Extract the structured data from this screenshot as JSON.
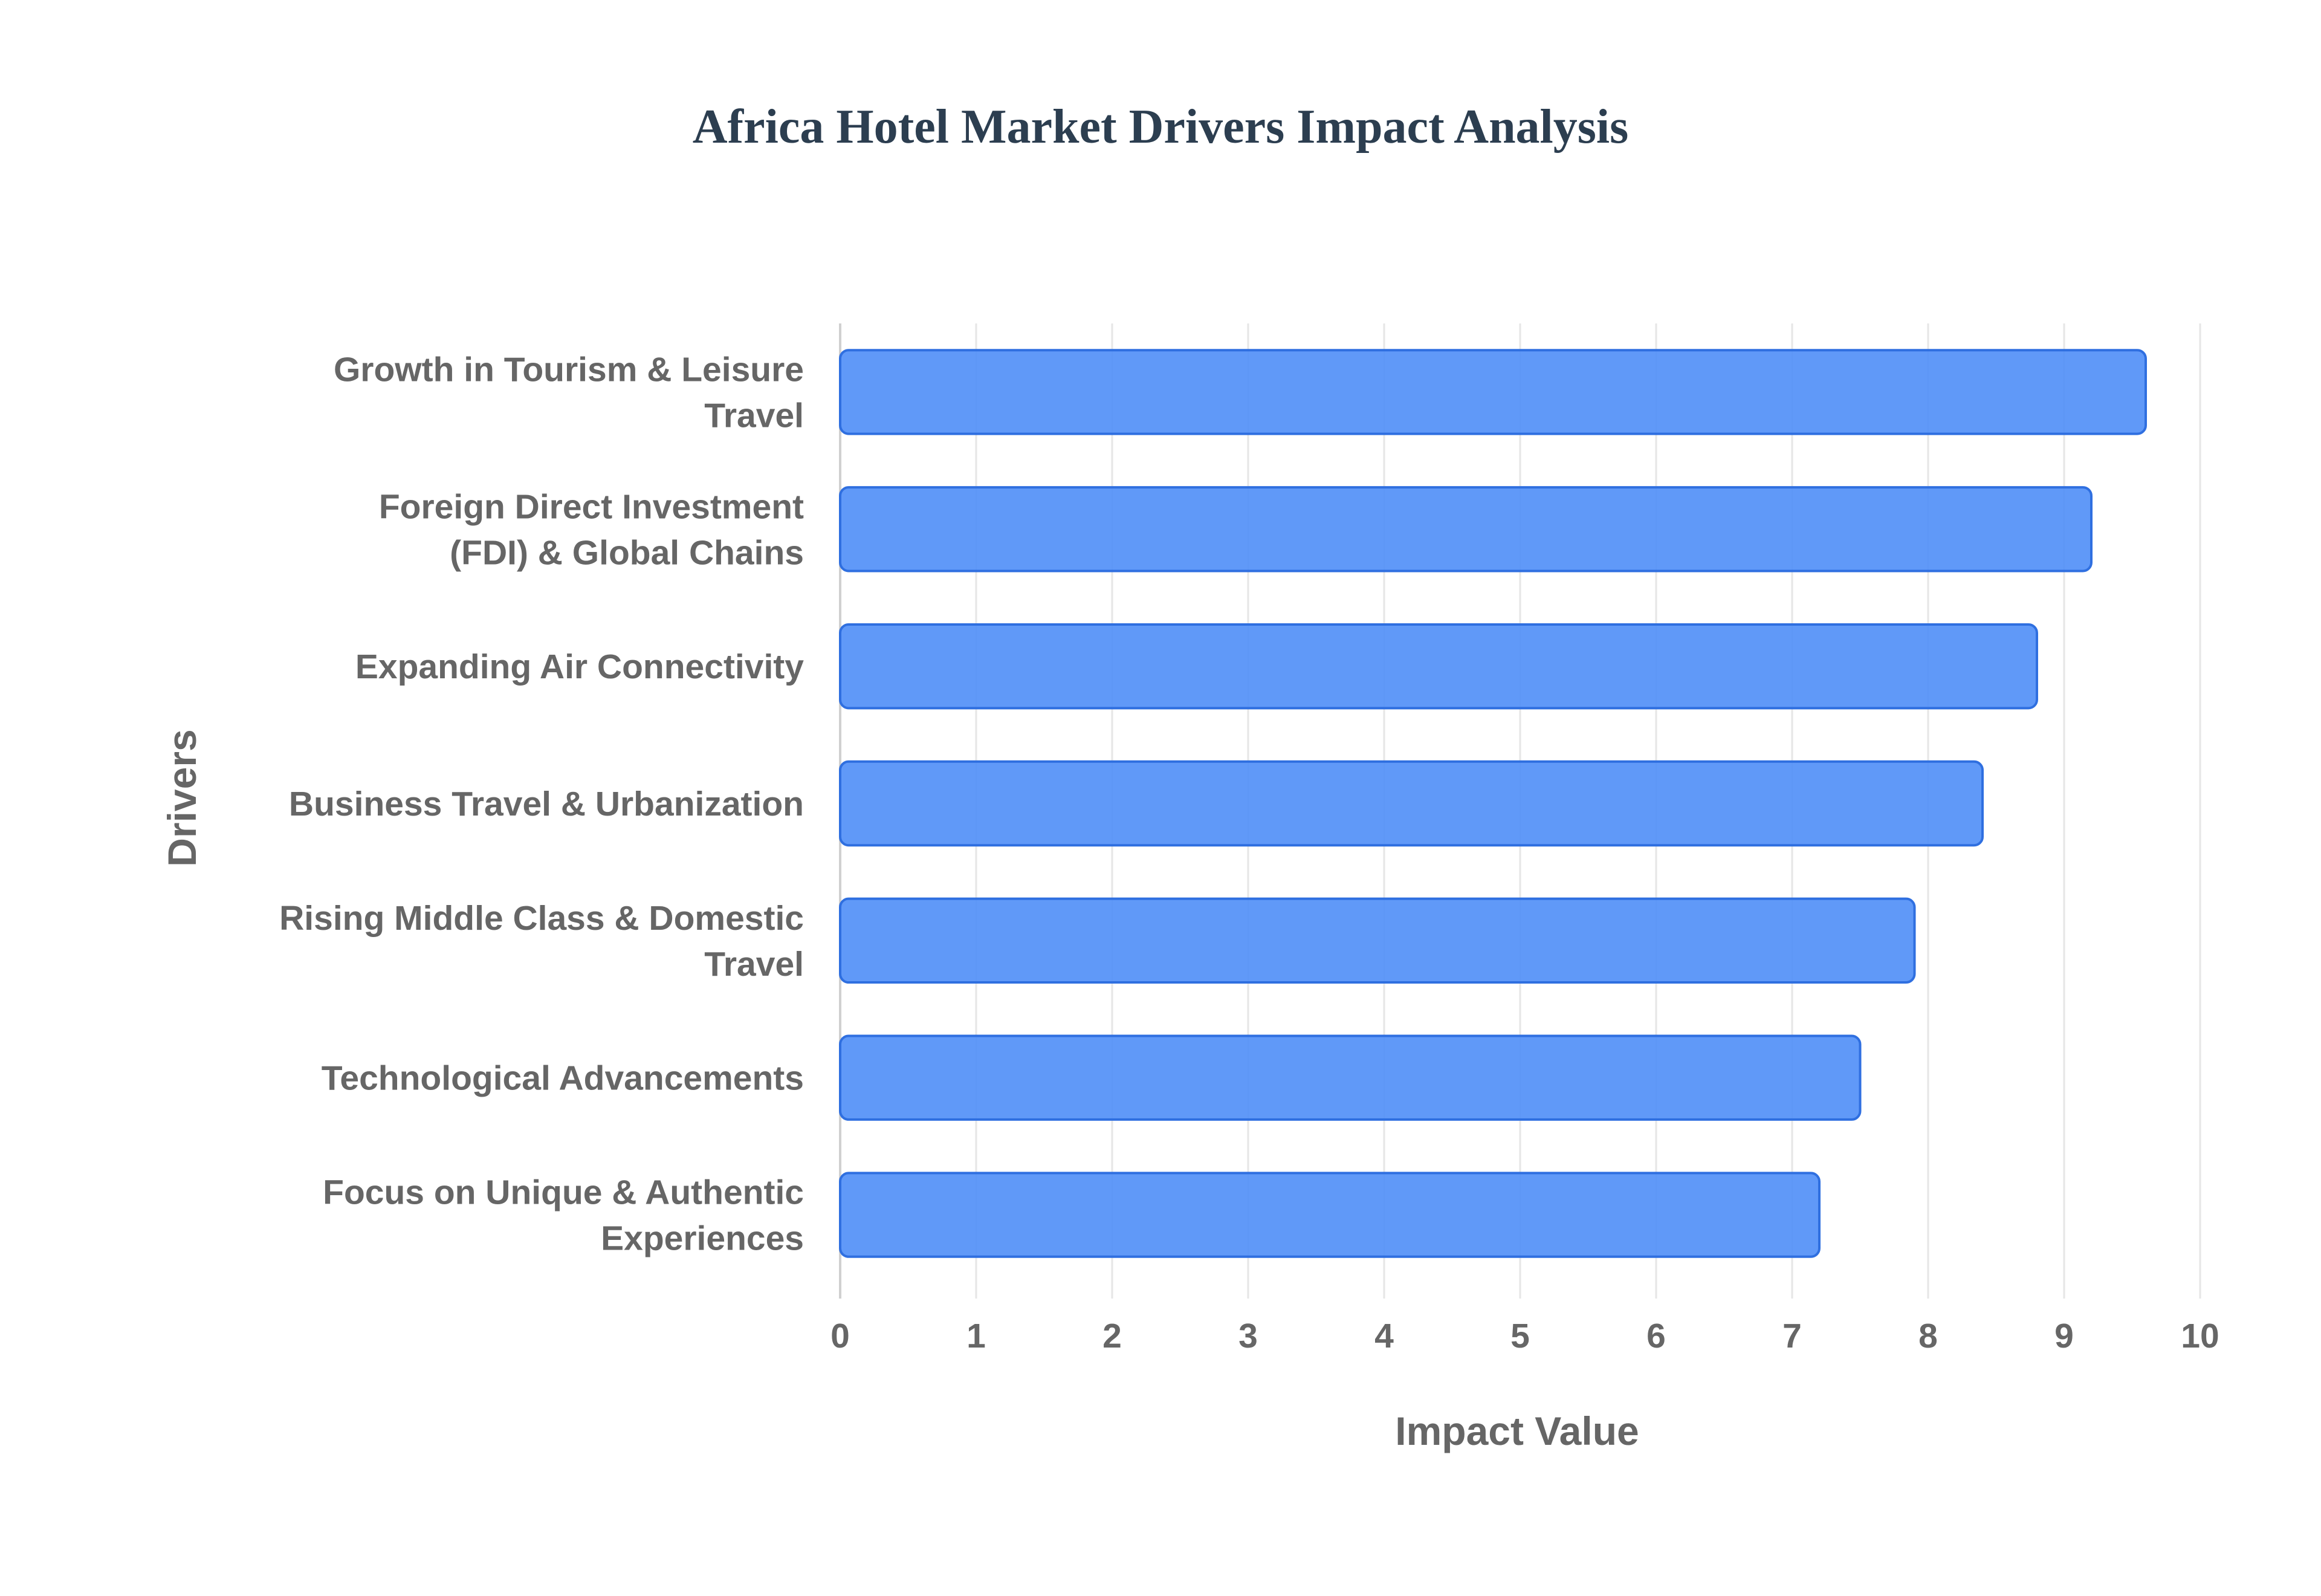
{
  "chart_data": {
    "type": "bar",
    "orientation": "horizontal",
    "title": "Africa Hotel Market Drivers Impact Analysis",
    "xlabel": "Impact Value",
    "ylabel": "Drivers",
    "categories": [
      [
        "Growth in Tourism & Leisure",
        "Travel"
      ],
      [
        "Foreign Direct Investment",
        "(FDI) & Global Chains"
      ],
      [
        "Expanding Air Connectivity"
      ],
      [
        "Business Travel & Urbanization"
      ],
      [
        "Rising Middle Class & Domestic",
        "Travel"
      ],
      [
        "Technological Advancements"
      ],
      [
        "Focus on Unique & Authentic",
        "Experiences"
      ]
    ],
    "values": [
      9.6,
      9.2,
      8.8,
      8.4,
      7.9,
      7.5,
      7.2
    ],
    "xlim": [
      0,
      10
    ],
    "x_ticks": [
      "0",
      "1",
      "2",
      "3",
      "4",
      "5",
      "6",
      "7",
      "8",
      "9",
      "10"
    ],
    "grid": true,
    "bar_color": "#4f8ef7",
    "bar_border_color": "#2f6fe0"
  }
}
